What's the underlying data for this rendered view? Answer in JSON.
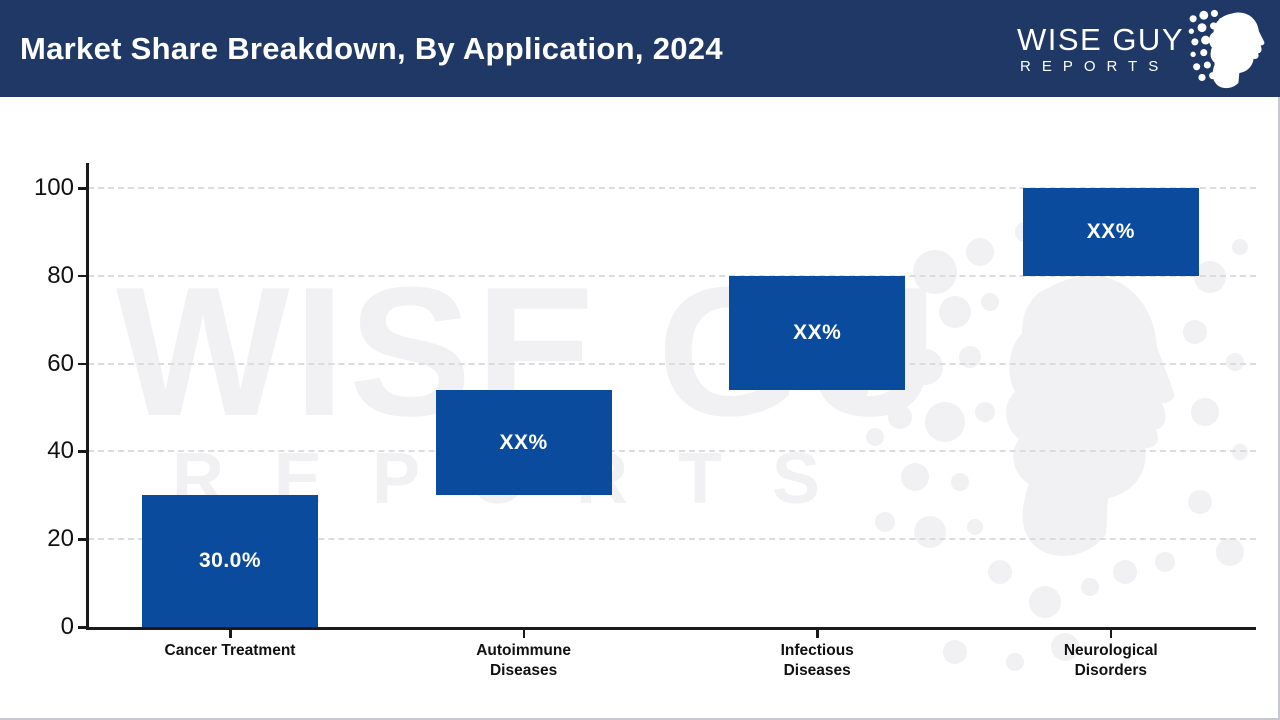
{
  "header": {
    "title": "Market Share Breakdown, By Application, 2024",
    "background_color": "#1f3865",
    "logo": {
      "line1": "WISE GUY",
      "line2": "REPORTS"
    }
  },
  "watermark": {
    "line1": "WISE GU",
    "line2": "REPORTS"
  },
  "chart_data": {
    "type": "bar",
    "subtype": "floating-waterfall",
    "title": "Market Share Breakdown, By Application, 2024",
    "categories": [
      [
        "Cancer Treatment"
      ],
      [
        "Autoimmune",
        "Diseases"
      ],
      [
        "Infectious",
        "Diseases"
      ],
      [
        "Neurological",
        "Disorders"
      ]
    ],
    "segments": [
      {
        "start": 0,
        "end": 30,
        "label": "30.0%"
      },
      {
        "start": 30,
        "end": 54,
        "label": "XX%"
      },
      {
        "start": 54,
        "end": 80,
        "label": "XX%"
      },
      {
        "start": 80,
        "end": 100,
        "label": "XX%"
      }
    ],
    "ylim": [
      0,
      100
    ],
    "yticks": [
      0,
      20,
      40,
      60,
      80,
      100
    ],
    "xlabel": "",
    "ylabel": "",
    "grid": {
      "axis": "y",
      "style": "dashed",
      "color": "#dcdcdc"
    },
    "legend": null,
    "bar_color": "#0a4b9e",
    "bar_label_color": "#ffffff",
    "axis_color": "#1a1a1a"
  }
}
